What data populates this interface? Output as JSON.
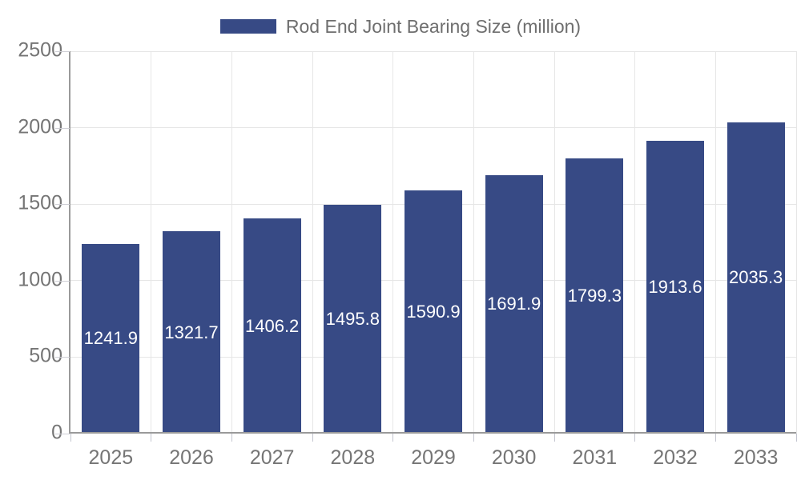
{
  "legend": {
    "label": "Rod End Joint Bearing Size (million)"
  },
  "chart_data": {
    "type": "bar",
    "title": "",
    "xlabel": "",
    "ylabel": "",
    "legend": "Rod End Joint Bearing Size (million)",
    "legend_position": "top",
    "categories": [
      "2025",
      "2026",
      "2027",
      "2028",
      "2029",
      "2030",
      "2031",
      "2032",
      "2033"
    ],
    "values": [
      1241.9,
      1321.7,
      1406.2,
      1495.8,
      1590.9,
      1691.9,
      1799.3,
      1913.6,
      2035.3
    ],
    "ylim": [
      0,
      2500
    ],
    "yticks": [
      0,
      500,
      1000,
      1500,
      2000,
      2500
    ],
    "grid": true,
    "colors": {
      "bar": "#374A85",
      "bar_value_label": "#FFFFFF",
      "axis_text": "#757575",
      "legend_text": "#6E6E6E",
      "gridline": "#E6E6E6",
      "axis_line": "#9A9A9A",
      "background": "#FFFFFF"
    }
  }
}
